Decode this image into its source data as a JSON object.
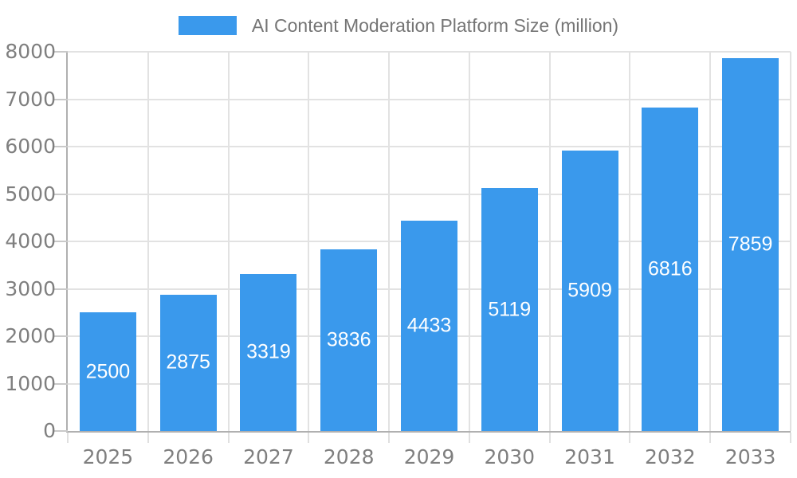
{
  "chart_data": {
    "type": "bar",
    "title": "AI Content Moderation Platform Size (million)",
    "categories": [
      "2025",
      "2026",
      "2027",
      "2028",
      "2029",
      "2030",
      "2031",
      "2032",
      "2033"
    ],
    "values": [
      2500,
      2875,
      3319,
      3836,
      4433,
      5119,
      5909,
      6816,
      7859
    ],
    "xlabel": "",
    "ylabel": "",
    "ylim": [
      0,
      8000
    ],
    "ytick_step": 1000,
    "yticks": [
      0,
      1000,
      2000,
      3000,
      4000,
      5000,
      6000,
      7000,
      8000
    ],
    "grid": true,
    "legend_position": "top-center",
    "bar_labels_inside": true,
    "colors": {
      "bar": "#3A99EC",
      "title_text": "#757575",
      "tick_text": "#7F7F7F",
      "axis": "#B0B0B0",
      "gridline": "#E2E2E2",
      "y_tick": "#C9C9C9",
      "x_tick": "#E0E0E0",
      "bar_label": "#FFFFFF"
    }
  }
}
